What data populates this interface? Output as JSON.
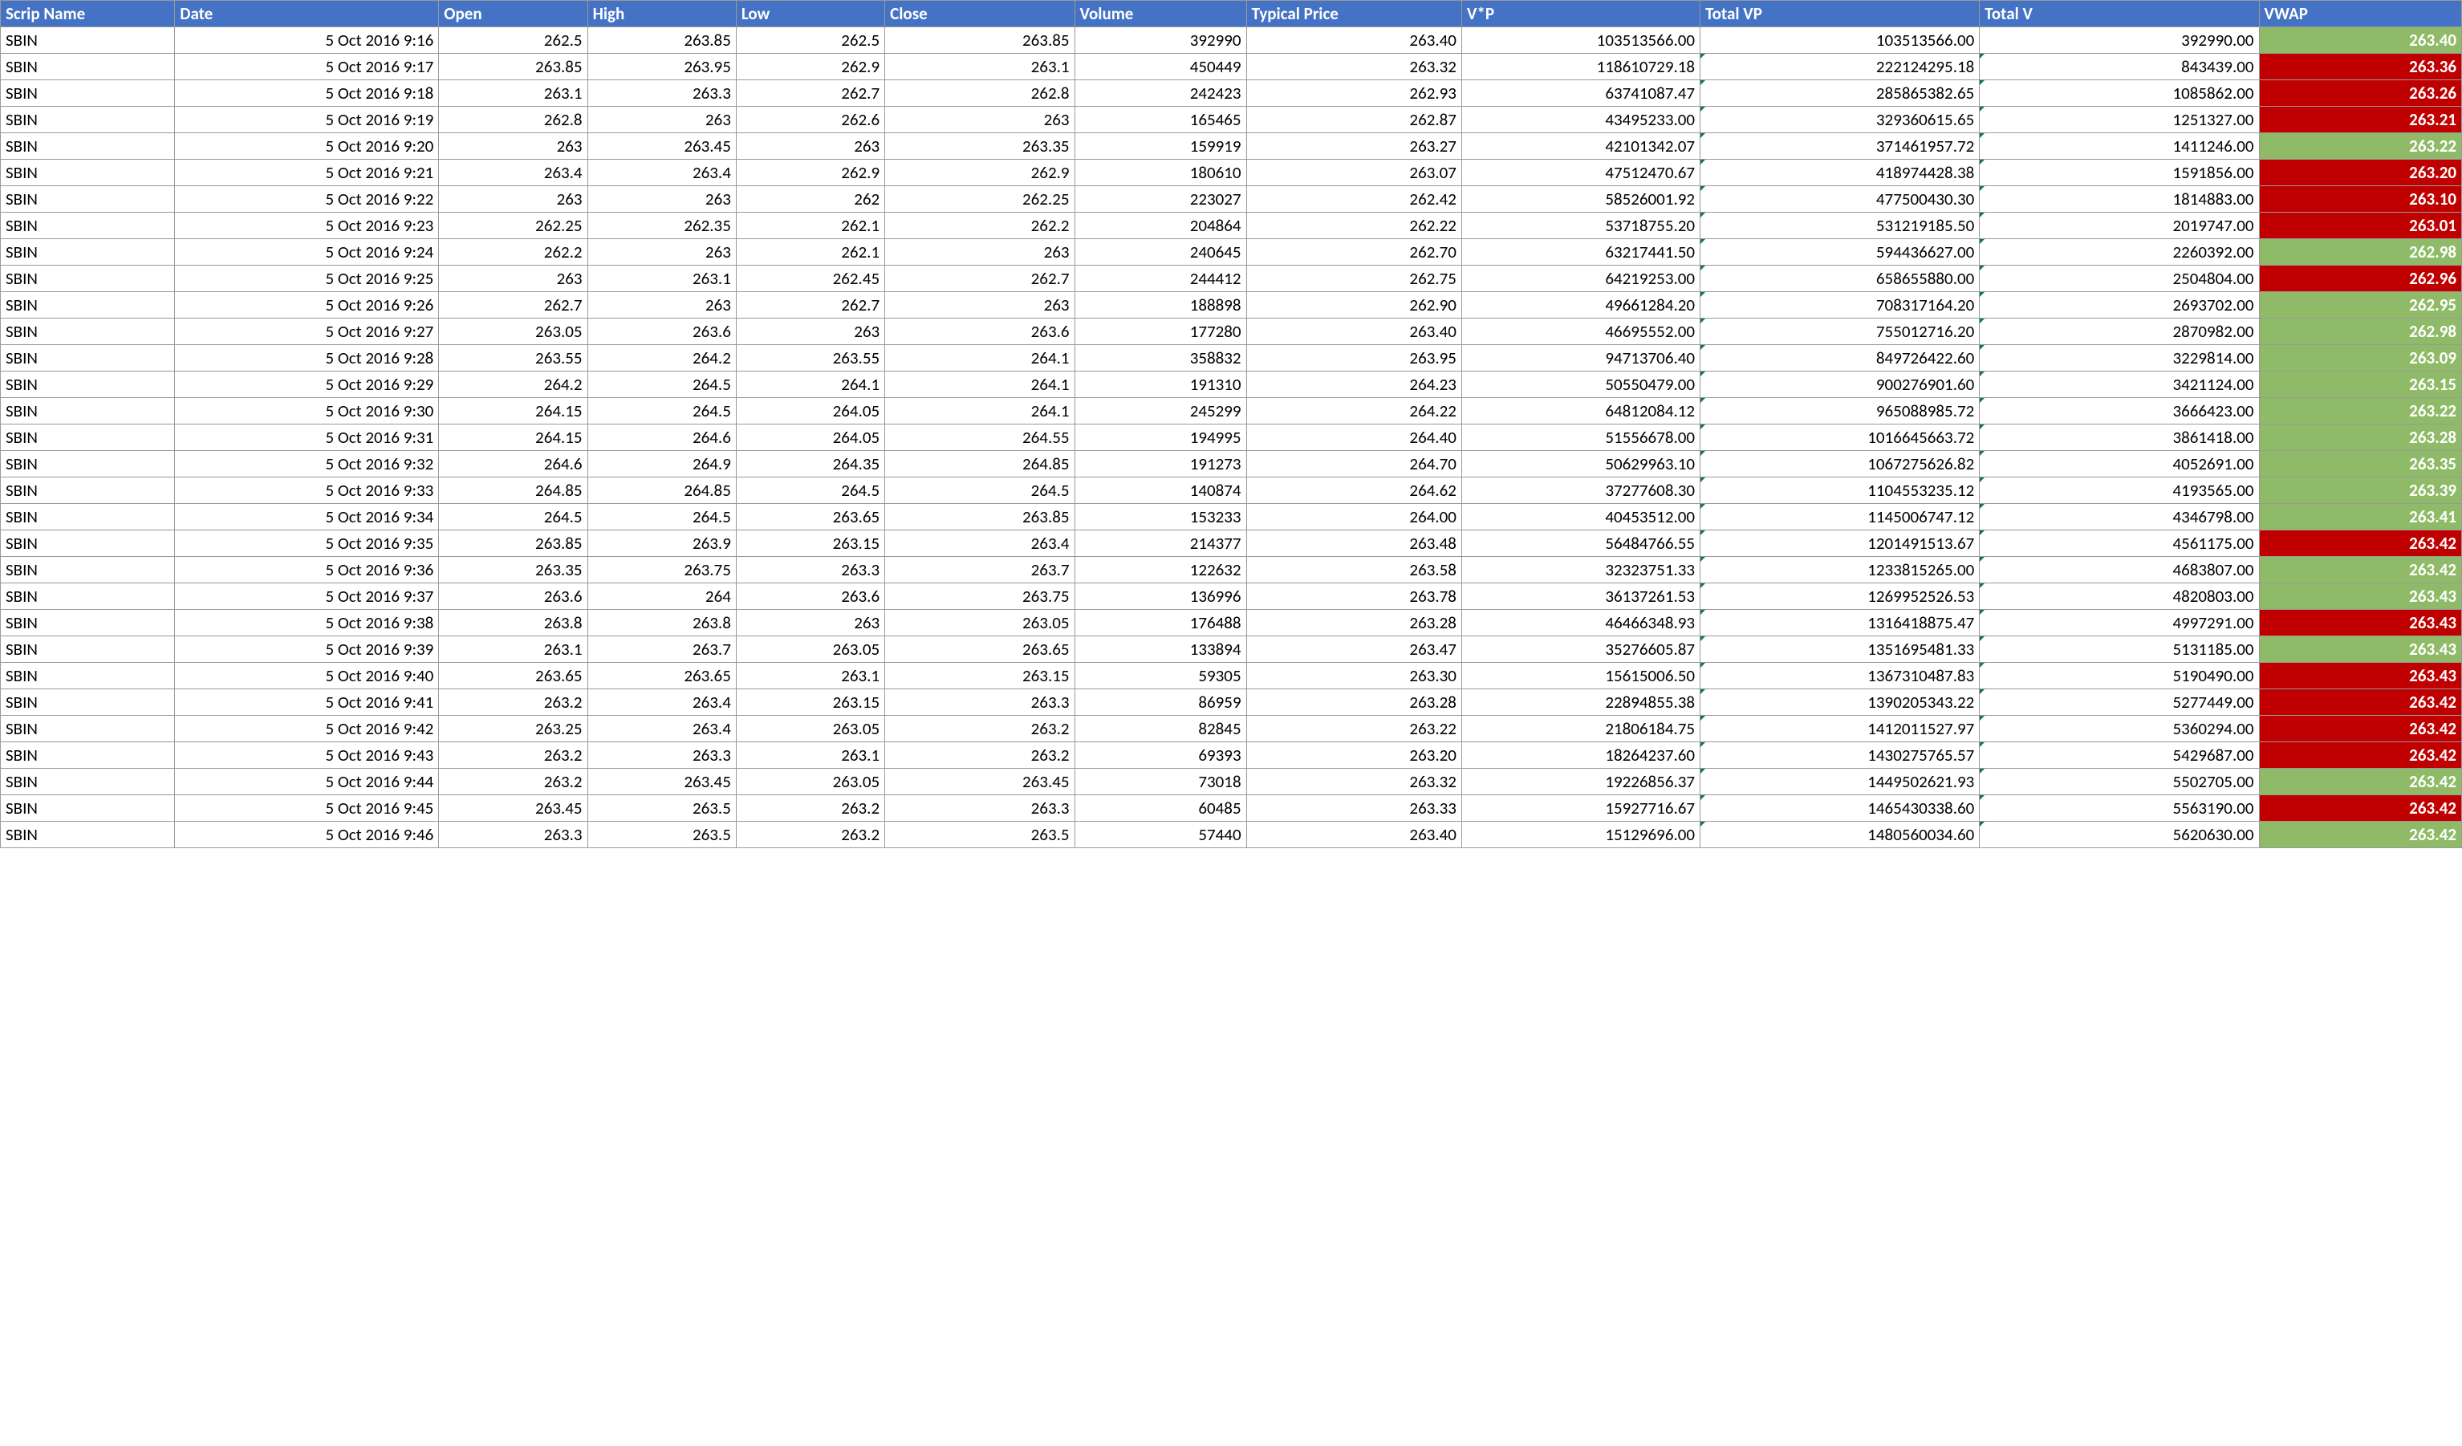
{
  "table": {
    "header_bg": "#4472c4",
    "header_fg": "#ffffff",
    "vwap_colors": {
      "up": "#8fbb69",
      "down": "#c00000"
    },
    "columns": [
      {
        "key": "scrip",
        "label": "Scrip Name",
        "align": "left",
        "cls": "c-scrip"
      },
      {
        "key": "date",
        "label": "Date",
        "align": "right",
        "cls": "c-date"
      },
      {
        "key": "open",
        "label": "Open",
        "align": "right",
        "cls": "c-open"
      },
      {
        "key": "high",
        "label": "High",
        "align": "right",
        "cls": "c-high"
      },
      {
        "key": "low",
        "label": "Low",
        "align": "right",
        "cls": "c-low"
      },
      {
        "key": "close",
        "label": "Close",
        "align": "right",
        "cls": "c-close"
      },
      {
        "key": "volume",
        "label": "Volume",
        "align": "right",
        "cls": "c-vol"
      },
      {
        "key": "tp",
        "label": "Typical Price",
        "align": "right",
        "cls": "c-tp"
      },
      {
        "key": "vp",
        "label": "V*P",
        "align": "right",
        "cls": "c-vp"
      },
      {
        "key": "tvp",
        "label": "Total VP",
        "align": "right",
        "cls": "c-tvp"
      },
      {
        "key": "tv",
        "label": "Total V",
        "align": "right",
        "cls": "c-tv"
      },
      {
        "key": "vwap",
        "label": "VWAP",
        "align": "right",
        "cls": "c-vwap"
      }
    ],
    "rows": [
      {
        "scrip": "SBIN",
        "date": "5 Oct 2016 9:16",
        "open": "262.5",
        "high": "263.85",
        "low": "262.5",
        "close": "263.85",
        "volume": "392990",
        "tp": "263.40",
        "vp": "103513566.00",
        "tvp": "103513566.00",
        "tv": "392990.00",
        "vwap": "263.40",
        "dir": "up",
        "flag_tvp": false,
        "flag_tv": false
      },
      {
        "scrip": "SBIN",
        "date": "5 Oct 2016 9:17",
        "open": "263.85",
        "high": "263.95",
        "low": "262.9",
        "close": "263.1",
        "volume": "450449",
        "tp": "263.32",
        "vp": "118610729.18",
        "tvp": "222124295.18",
        "tv": "843439.00",
        "vwap": "263.36",
        "dir": "down",
        "flag_tvp": true,
        "flag_tv": true
      },
      {
        "scrip": "SBIN",
        "date": "5 Oct 2016 9:18",
        "open": "263.1",
        "high": "263.3",
        "low": "262.7",
        "close": "262.8",
        "volume": "242423",
        "tp": "262.93",
        "vp": "63741087.47",
        "tvp": "285865382.65",
        "tv": "1085862.00",
        "vwap": "263.26",
        "dir": "down",
        "flag_tvp": true,
        "flag_tv": true
      },
      {
        "scrip": "SBIN",
        "date": "5 Oct 2016 9:19",
        "open": "262.8",
        "high": "263",
        "low": "262.6",
        "close": "263",
        "volume": "165465",
        "tp": "262.87",
        "vp": "43495233.00",
        "tvp": "329360615.65",
        "tv": "1251327.00",
        "vwap": "263.21",
        "dir": "down",
        "flag_tvp": true,
        "flag_tv": true
      },
      {
        "scrip": "SBIN",
        "date": "5 Oct 2016 9:20",
        "open": "263",
        "high": "263.45",
        "low": "263",
        "close": "263.35",
        "volume": "159919",
        "tp": "263.27",
        "vp": "42101342.07",
        "tvp": "371461957.72",
        "tv": "1411246.00",
        "vwap": "263.22",
        "dir": "up",
        "flag_tvp": true,
        "flag_tv": true
      },
      {
        "scrip": "SBIN",
        "date": "5 Oct 2016 9:21",
        "open": "263.4",
        "high": "263.4",
        "low": "262.9",
        "close": "262.9",
        "volume": "180610",
        "tp": "263.07",
        "vp": "47512470.67",
        "tvp": "418974428.38",
        "tv": "1591856.00",
        "vwap": "263.20",
        "dir": "down",
        "flag_tvp": true,
        "flag_tv": true
      },
      {
        "scrip": "SBIN",
        "date": "5 Oct 2016 9:22",
        "open": "263",
        "high": "263",
        "low": "262",
        "close": "262.25",
        "volume": "223027",
        "tp": "262.42",
        "vp": "58526001.92",
        "tvp": "477500430.30",
        "tv": "1814883.00",
        "vwap": "263.10",
        "dir": "down",
        "flag_tvp": true,
        "flag_tv": true
      },
      {
        "scrip": "SBIN",
        "date": "5 Oct 2016 9:23",
        "open": "262.25",
        "high": "262.35",
        "low": "262.1",
        "close": "262.2",
        "volume": "204864",
        "tp": "262.22",
        "vp": "53718755.20",
        "tvp": "531219185.50",
        "tv": "2019747.00",
        "vwap": "263.01",
        "dir": "down",
        "flag_tvp": true,
        "flag_tv": true
      },
      {
        "scrip": "SBIN",
        "date": "5 Oct 2016 9:24",
        "open": "262.2",
        "high": "263",
        "low": "262.1",
        "close": "263",
        "volume": "240645",
        "tp": "262.70",
        "vp": "63217441.50",
        "tvp": "594436627.00",
        "tv": "2260392.00",
        "vwap": "262.98",
        "dir": "up",
        "flag_tvp": true,
        "flag_tv": true
      },
      {
        "scrip": "SBIN",
        "date": "5 Oct 2016 9:25",
        "open": "263",
        "high": "263.1",
        "low": "262.45",
        "close": "262.7",
        "volume": "244412",
        "tp": "262.75",
        "vp": "64219253.00",
        "tvp": "658655880.00",
        "tv": "2504804.00",
        "vwap": "262.96",
        "dir": "down",
        "flag_tvp": true,
        "flag_tv": true
      },
      {
        "scrip": "SBIN",
        "date": "5 Oct 2016 9:26",
        "open": "262.7",
        "high": "263",
        "low": "262.7",
        "close": "263",
        "volume": "188898",
        "tp": "262.90",
        "vp": "49661284.20",
        "tvp": "708317164.20",
        "tv": "2693702.00",
        "vwap": "262.95",
        "dir": "up",
        "flag_tvp": true,
        "flag_tv": true
      },
      {
        "scrip": "SBIN",
        "date": "5 Oct 2016 9:27",
        "open": "263.05",
        "high": "263.6",
        "low": "263",
        "close": "263.6",
        "volume": "177280",
        "tp": "263.40",
        "vp": "46695552.00",
        "tvp": "755012716.20",
        "tv": "2870982.00",
        "vwap": "262.98",
        "dir": "up",
        "flag_tvp": true,
        "flag_tv": true
      },
      {
        "scrip": "SBIN",
        "date": "5 Oct 2016 9:28",
        "open": "263.55",
        "high": "264.2",
        "low": "263.55",
        "close": "264.1",
        "volume": "358832",
        "tp": "263.95",
        "vp": "94713706.40",
        "tvp": "849726422.60",
        "tv": "3229814.00",
        "vwap": "263.09",
        "dir": "up",
        "flag_tvp": true,
        "flag_tv": true
      },
      {
        "scrip": "SBIN",
        "date": "5 Oct 2016 9:29",
        "open": "264.2",
        "high": "264.5",
        "low": "264.1",
        "close": "264.1",
        "volume": "191310",
        "tp": "264.23",
        "vp": "50550479.00",
        "tvp": "900276901.60",
        "tv": "3421124.00",
        "vwap": "263.15",
        "dir": "up",
        "flag_tvp": true,
        "flag_tv": true
      },
      {
        "scrip": "SBIN",
        "date": "5 Oct 2016 9:30",
        "open": "264.15",
        "high": "264.5",
        "low": "264.05",
        "close": "264.1",
        "volume": "245299",
        "tp": "264.22",
        "vp": "64812084.12",
        "tvp": "965088985.72",
        "tv": "3666423.00",
        "vwap": "263.22",
        "dir": "up",
        "flag_tvp": true,
        "flag_tv": true
      },
      {
        "scrip": "SBIN",
        "date": "5 Oct 2016 9:31",
        "open": "264.15",
        "high": "264.6",
        "low": "264.05",
        "close": "264.55",
        "volume": "194995",
        "tp": "264.40",
        "vp": "51556678.00",
        "tvp": "1016645663.72",
        "tv": "3861418.00",
        "vwap": "263.28",
        "dir": "up",
        "flag_tvp": true,
        "flag_tv": true
      },
      {
        "scrip": "SBIN",
        "date": "5 Oct 2016 9:32",
        "open": "264.6",
        "high": "264.9",
        "low": "264.35",
        "close": "264.85",
        "volume": "191273",
        "tp": "264.70",
        "vp": "50629963.10",
        "tvp": "1067275626.82",
        "tv": "4052691.00",
        "vwap": "263.35",
        "dir": "up",
        "flag_tvp": true,
        "flag_tv": true
      },
      {
        "scrip": "SBIN",
        "date": "5 Oct 2016 9:33",
        "open": "264.85",
        "high": "264.85",
        "low": "264.5",
        "close": "264.5",
        "volume": "140874",
        "tp": "264.62",
        "vp": "37277608.30",
        "tvp": "1104553235.12",
        "tv": "4193565.00",
        "vwap": "263.39",
        "dir": "up",
        "flag_tvp": true,
        "flag_tv": true
      },
      {
        "scrip": "SBIN",
        "date": "5 Oct 2016 9:34",
        "open": "264.5",
        "high": "264.5",
        "low": "263.65",
        "close": "263.85",
        "volume": "153233",
        "tp": "264.00",
        "vp": "40453512.00",
        "tvp": "1145006747.12",
        "tv": "4346798.00",
        "vwap": "263.41",
        "dir": "up",
        "flag_tvp": true,
        "flag_tv": true
      },
      {
        "scrip": "SBIN",
        "date": "5 Oct 2016 9:35",
        "open": "263.85",
        "high": "263.9",
        "low": "263.15",
        "close": "263.4",
        "volume": "214377",
        "tp": "263.48",
        "vp": "56484766.55",
        "tvp": "1201491513.67",
        "tv": "4561175.00",
        "vwap": "263.42",
        "dir": "down",
        "flag_tvp": true,
        "flag_tv": true
      },
      {
        "scrip": "SBIN",
        "date": "5 Oct 2016 9:36",
        "open": "263.35",
        "high": "263.75",
        "low": "263.3",
        "close": "263.7",
        "volume": "122632",
        "tp": "263.58",
        "vp": "32323751.33",
        "tvp": "1233815265.00",
        "tv": "4683807.00",
        "vwap": "263.42",
        "dir": "up",
        "flag_tvp": true,
        "flag_tv": true
      },
      {
        "scrip": "SBIN",
        "date": "5 Oct 2016 9:37",
        "open": "263.6",
        "high": "264",
        "low": "263.6",
        "close": "263.75",
        "volume": "136996",
        "tp": "263.78",
        "vp": "36137261.53",
        "tvp": "1269952526.53",
        "tv": "4820803.00",
        "vwap": "263.43",
        "dir": "up",
        "flag_tvp": true,
        "flag_tv": true
      },
      {
        "scrip": "SBIN",
        "date": "5 Oct 2016 9:38",
        "open": "263.8",
        "high": "263.8",
        "low": "263",
        "close": "263.05",
        "volume": "176488",
        "tp": "263.28",
        "vp": "46466348.93",
        "tvp": "1316418875.47",
        "tv": "4997291.00",
        "vwap": "263.43",
        "dir": "down",
        "flag_tvp": true,
        "flag_tv": true
      },
      {
        "scrip": "SBIN",
        "date": "5 Oct 2016 9:39",
        "open": "263.1",
        "high": "263.7",
        "low": "263.05",
        "close": "263.65",
        "volume": "133894",
        "tp": "263.47",
        "vp": "35276605.87",
        "tvp": "1351695481.33",
        "tv": "5131185.00",
        "vwap": "263.43",
        "dir": "up",
        "flag_tvp": true,
        "flag_tv": true
      },
      {
        "scrip": "SBIN",
        "date": "5 Oct 2016 9:40",
        "open": "263.65",
        "high": "263.65",
        "low": "263.1",
        "close": "263.15",
        "volume": "59305",
        "tp": "263.30",
        "vp": "15615006.50",
        "tvp": "1367310487.83",
        "tv": "5190490.00",
        "vwap": "263.43",
        "dir": "down",
        "flag_tvp": true,
        "flag_tv": true
      },
      {
        "scrip": "SBIN",
        "date": "5 Oct 2016 9:41",
        "open": "263.2",
        "high": "263.4",
        "low": "263.15",
        "close": "263.3",
        "volume": "86959",
        "tp": "263.28",
        "vp": "22894855.38",
        "tvp": "1390205343.22",
        "tv": "5277449.00",
        "vwap": "263.42",
        "dir": "down",
        "flag_tvp": true,
        "flag_tv": true
      },
      {
        "scrip": "SBIN",
        "date": "5 Oct 2016 9:42",
        "open": "263.25",
        "high": "263.4",
        "low": "263.05",
        "close": "263.2",
        "volume": "82845",
        "tp": "263.22",
        "vp": "21806184.75",
        "tvp": "1412011527.97",
        "tv": "5360294.00",
        "vwap": "263.42",
        "dir": "down",
        "flag_tvp": true,
        "flag_tv": true
      },
      {
        "scrip": "SBIN",
        "date": "5 Oct 2016 9:43",
        "open": "263.2",
        "high": "263.3",
        "low": "263.1",
        "close": "263.2",
        "volume": "69393",
        "tp": "263.20",
        "vp": "18264237.60",
        "tvp": "1430275765.57",
        "tv": "5429687.00",
        "vwap": "263.42",
        "dir": "down",
        "flag_tvp": true,
        "flag_tv": true
      },
      {
        "scrip": "SBIN",
        "date": "5 Oct 2016 9:44",
        "open": "263.2",
        "high": "263.45",
        "low": "263.05",
        "close": "263.45",
        "volume": "73018",
        "tp": "263.32",
        "vp": "19226856.37",
        "tvp": "1449502621.93",
        "tv": "5502705.00",
        "vwap": "263.42",
        "dir": "up",
        "flag_tvp": true,
        "flag_tv": true
      },
      {
        "scrip": "SBIN",
        "date": "5 Oct 2016 9:45",
        "open": "263.45",
        "high": "263.5",
        "low": "263.2",
        "close": "263.3",
        "volume": "60485",
        "tp": "263.33",
        "vp": "15927716.67",
        "tvp": "1465430338.60",
        "tv": "5563190.00",
        "vwap": "263.42",
        "dir": "down",
        "flag_tvp": true,
        "flag_tv": true
      },
      {
        "scrip": "SBIN",
        "date": "5 Oct 2016 9:46",
        "open": "263.3",
        "high": "263.5",
        "low": "263.2",
        "close": "263.5",
        "volume": "57440",
        "tp": "263.40",
        "vp": "15129696.00",
        "tvp": "1480560034.60",
        "tv": "5620630.00",
        "vwap": "263.42",
        "dir": "up",
        "flag_tvp": true,
        "flag_tv": true
      }
    ]
  }
}
